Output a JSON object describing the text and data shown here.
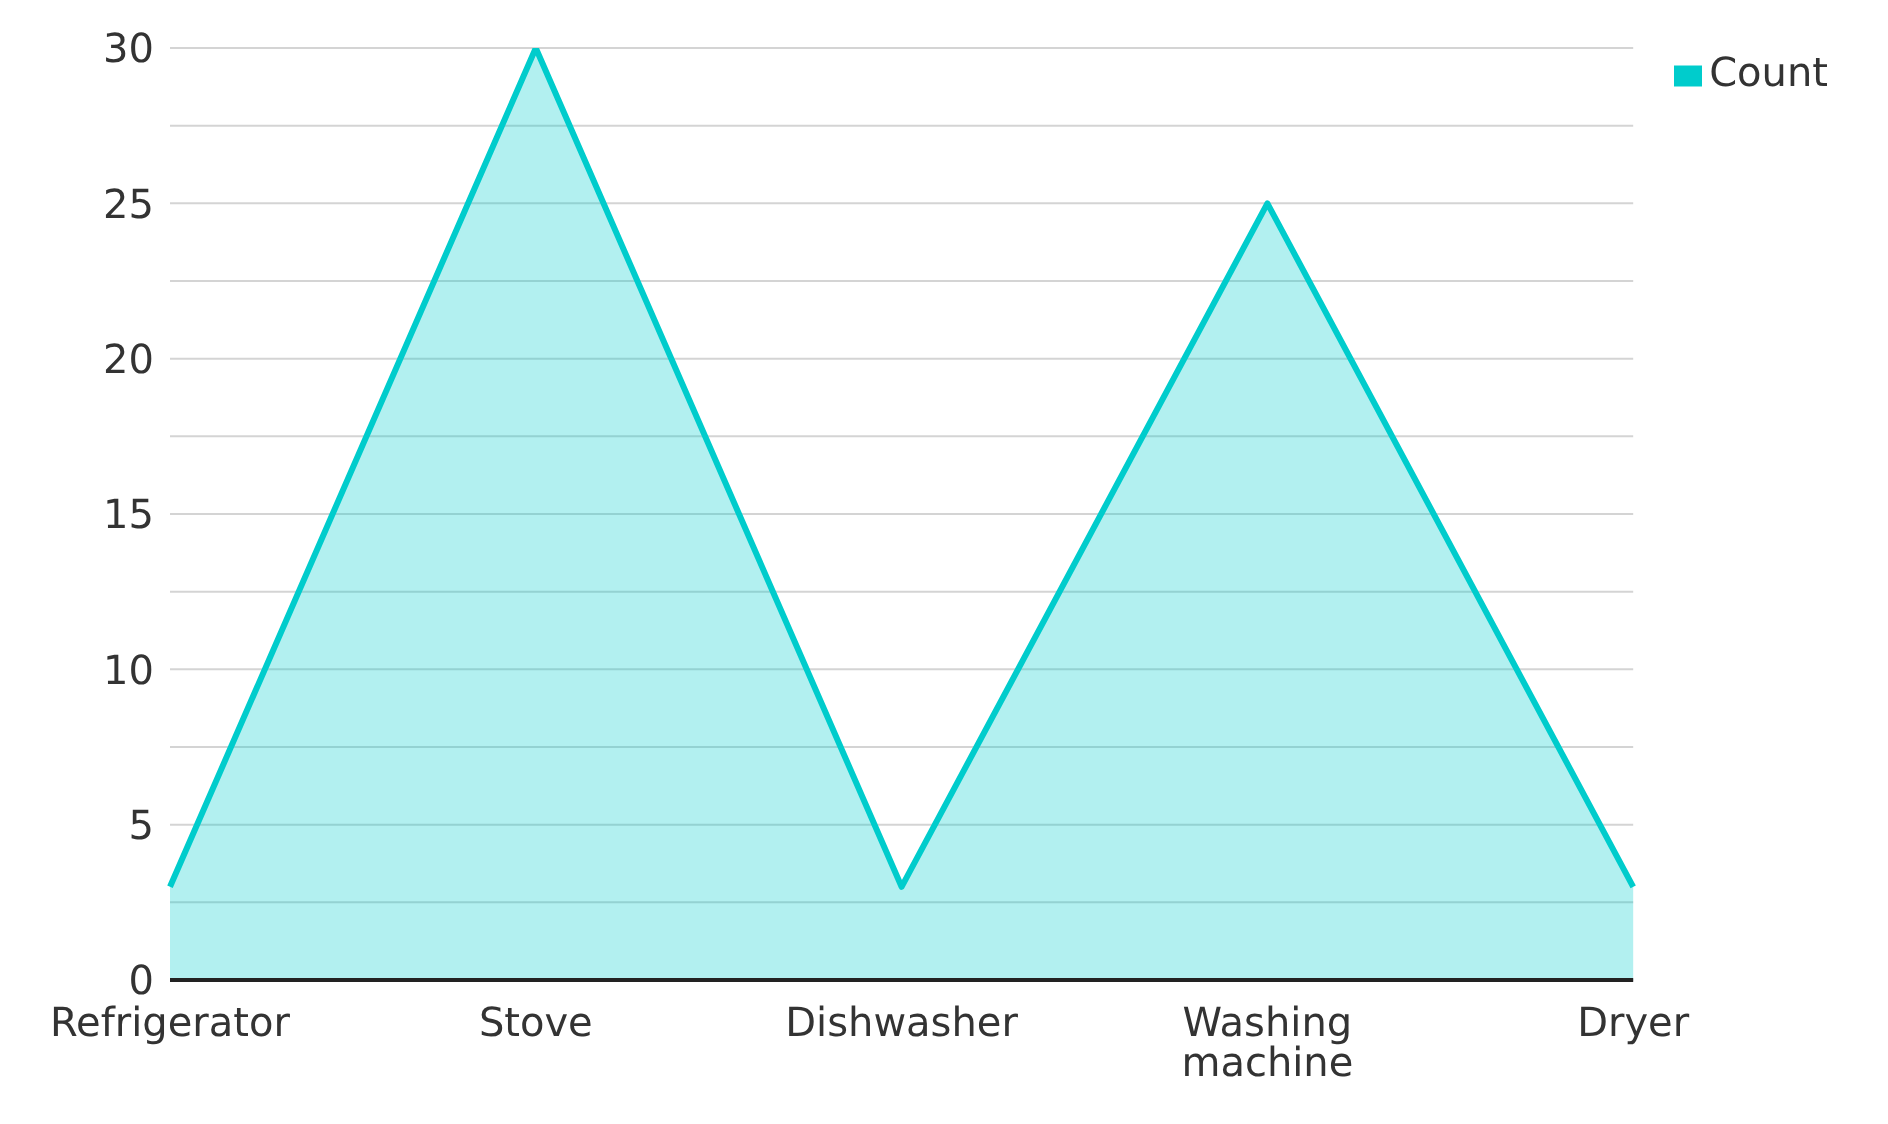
{
  "chart_data": {
    "type": "area",
    "categories": [
      "Refrigerator",
      "Stove",
      "Dishwasher",
      "Washing machine",
      "Dryer"
    ],
    "series": [
      {
        "name": "Count",
        "color": "#00cccc",
        "values": [
          3,
          30,
          3,
          25,
          3
        ]
      }
    ],
    "ylim": [
      0,
      30
    ],
    "yticks": [
      0,
      {
        "value": 2.5,
        "label": null
      },
      5,
      {
        "value": 7.5,
        "label": null
      },
      10,
      {
        "value": 12.5,
        "label": null
      },
      15,
      {
        "value": 17.5,
        "label": null
      },
      20,
      {
        "value": 22.5,
        "label": null
      },
      25,
      {
        "value": 27.5,
        "label": null
      },
      30
    ],
    "grid": "y",
    "legend": "top right"
  }
}
